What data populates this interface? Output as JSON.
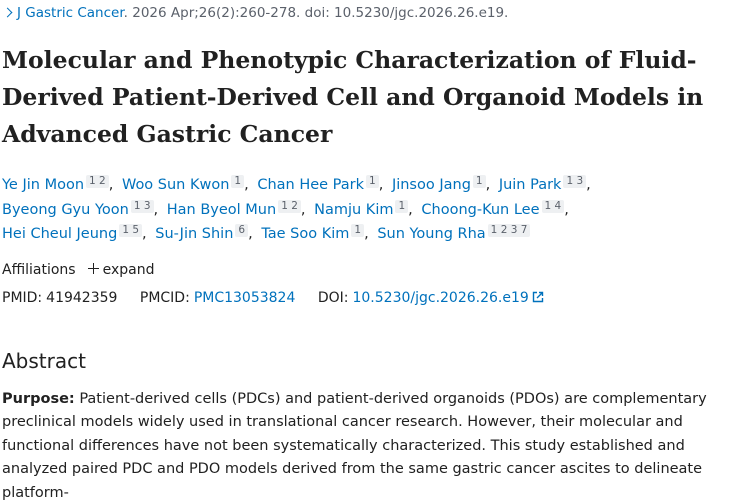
{
  "citation": {
    "journal": "J Gastric Cancer",
    "details": ". 2026 Apr;26(2):260-278. doi: 10.5230/jgc.2026.26.e19."
  },
  "title": "Molecular and Phenotypic Characterization of Fluid-Derived Patient-Derived Cell and Organoid Models in Advanced Gastric Cancer",
  "authors": [
    {
      "name": "Ye Jin Moon",
      "affiliations": [
        1,
        2
      ]
    },
    {
      "name": "Woo Sun Kwon",
      "affiliations": [
        1
      ]
    },
    {
      "name": "Chan Hee Park",
      "affiliations": [
        1
      ]
    },
    {
      "name": "Jinsoo Jang",
      "affiliations": [
        1
      ]
    },
    {
      "name": "Juin Park",
      "affiliations": [
        1,
        3
      ]
    },
    {
      "name": "Byeong Gyu Yoon",
      "affiliations": [
        1,
        3
      ]
    },
    {
      "name": "Han Byeol Mun",
      "affiliations": [
        1,
        2
      ]
    },
    {
      "name": "Namju Kim",
      "affiliations": [
        1
      ]
    },
    {
      "name": "Choong-Kun Lee",
      "affiliations": [
        1,
        4
      ]
    },
    {
      "name": "Hei Cheul Jeung",
      "affiliations": [
        1,
        5
      ]
    },
    {
      "name": "Su-Jin Shin",
      "affiliations": [
        6
      ]
    },
    {
      "name": "Tae Soo Kim",
      "affiliations": [
        1
      ]
    },
    {
      "name": "Sun Young Rha",
      "affiliations": [
        1,
        2,
        3,
        7
      ]
    }
  ],
  "affiliations": {
    "label": "Affiliations",
    "toggle": "expand"
  },
  "identifiers": {
    "pmid_label": "PMID:",
    "pmid": "41942359",
    "pmcid_label": "PMCID:",
    "pmcid": "PMC13053824",
    "doi_label": "DOI:",
    "doi": "10.5230/jgc.2026.26.e19"
  },
  "abstract": {
    "heading": "Abstract",
    "sections": [
      {
        "label": "Purpose:",
        "text": "Patient-derived cells (PDCs) and patient-derived organoids (PDOs) are complementary preclinical models widely used in translational cancer research. However, their molecular and functional differences have not been systematically characterized. This study established and analyzed paired PDC and PDO models derived from the same gastric cancer ascites to delineate platform-"
      }
    ]
  }
}
